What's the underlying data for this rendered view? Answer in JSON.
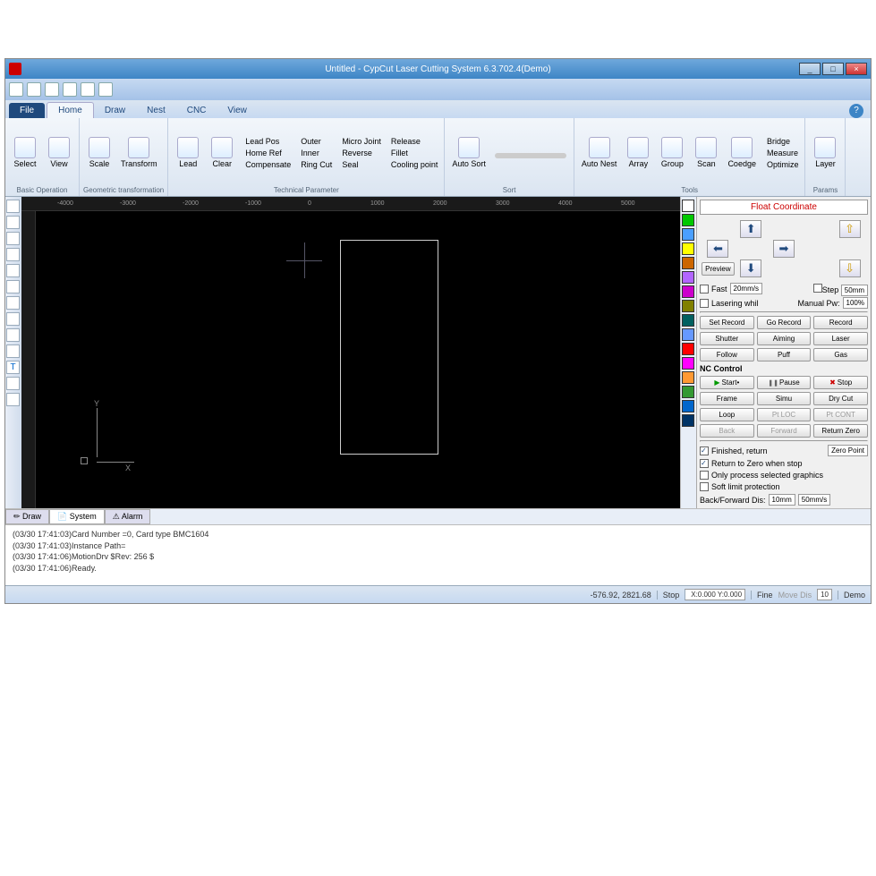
{
  "window": {
    "title": "Untitled - CypCut Laser Cutting System 6.3.702.4(Demo)",
    "min": "_",
    "max": "□",
    "close": "×"
  },
  "tabs": {
    "file": "File",
    "home": "Home",
    "draw": "Draw",
    "nest": "Nest",
    "cnc": "CNC",
    "view": "View"
  },
  "ribbon": {
    "basic": {
      "label": "Basic Operation",
      "select": "Select",
      "view": "View"
    },
    "geo": {
      "label": "Geometric transformation",
      "scale": "Scale",
      "transform": "Transform"
    },
    "tech": {
      "label": "Technical Parameter",
      "lead": "Lead",
      "clear": "Clear",
      "leadpos": "Lead Pos",
      "homeref": "Home Ref",
      "compensate": "Compensate",
      "outer": "Outer",
      "inner": "Inner",
      "ringcut": "Ring Cut",
      "microjoint": "Micro Joint",
      "reverse": "Reverse",
      "seal": "Seal",
      "release": "Release",
      "fillet": "Fillet",
      "cooling": "Cooling point"
    },
    "sort": {
      "label": "Sort",
      "auto": "Auto Sort"
    },
    "tools": {
      "label": "Tools",
      "autonest": "Auto Nest",
      "array": "Array",
      "group": "Group",
      "scan": "Scan",
      "coedge": "Coedge",
      "bridge": "Bridge",
      "measure": "Measure",
      "optimize": "Optimize"
    },
    "params": {
      "label": "Params",
      "layer": "Layer"
    }
  },
  "ruler_ticks": [
    "-4000",
    "-3000",
    "-2000",
    "-1000",
    "0",
    "1000",
    "2000",
    "3000",
    "4000",
    "5000"
  ],
  "layer_colors": [
    "#ffffff",
    "#00c800",
    "#4a9fff",
    "#ffff00",
    "#cc6600",
    "#b266ff",
    "#cc00cc",
    "#808000",
    "#006060",
    "#6699ff",
    "#ff0000",
    "#ff00ff",
    "#ff9933",
    "#339933",
    "#0066cc",
    "#003366"
  ],
  "panel": {
    "coord": "Float Coordinate",
    "preview": "Preview",
    "fast": "Fast",
    "fast_val": "20mm/s",
    "step": "Step",
    "step_val": "50mm",
    "lasering": "Lasering whil",
    "manual": "Manual Pw:",
    "manual_val": "100%",
    "setrecord": "Set Record",
    "gorecord": "Go Record",
    "record": "Record",
    "shutter": "Shutter",
    "aiming": "Aiming",
    "laser": "Laser",
    "follow": "Follow",
    "puff": "Puff",
    "gas": "Gas",
    "nccontrol": "NC Control",
    "start": "Start•",
    "pause": "Pause",
    "stop": "Stop",
    "frame": "Frame",
    "simu": "Simu",
    "drycut": "Dry Cut",
    "loop": "Loop",
    "ptloc": "Pt LOC",
    "ptcont": "Pt CONT",
    "back": "Back",
    "forward": "Forward",
    "returnzero": "Return Zero",
    "finished": "Finished, return",
    "zeropoint": "Zero Point",
    "return_stop": "Return to Zero when stop",
    "only_process": "Only process selected graphics",
    "soft_limit": "Soft limit protection",
    "backfwd": "Back/Forward Dis:",
    "bfd1": "10mm",
    "bfd2": "50mm/s"
  },
  "btabs": {
    "draw": "Draw",
    "system": "System",
    "alarm": "Alarm"
  },
  "log": [
    "(03/30 17:41:03)Card Number =0, Card type BMC1604",
    "(03/30 17:41:03)Instance Path=",
    "(03/30 17:41:06)MotionDrv $Rev: 256 $",
    "(03/30 17:41:06)Ready."
  ],
  "status": {
    "coords": "-576.92, 2821.68",
    "stop": "Stop",
    "pos": "X:0.000 Y:0.000",
    "fine": "Fine",
    "move": "Move Dis",
    "move_val": "10",
    "demo": "Demo"
  }
}
